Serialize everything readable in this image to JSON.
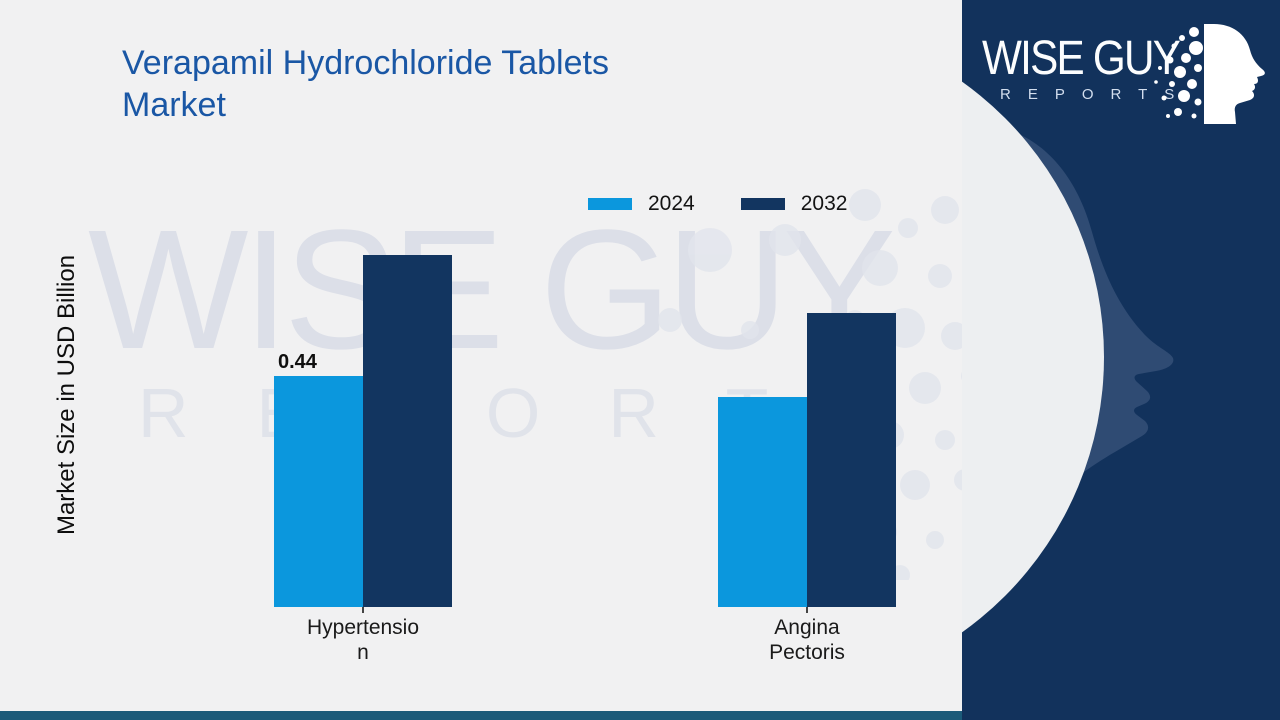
{
  "header": {
    "title_lines": [
      "Verapamil Hydrochloride Tablets",
      "Market"
    ],
    "title_color": "#1a57a5"
  },
  "logo": {
    "brand_line1": "WISE GUY",
    "brand_line2": "REPORTS"
  },
  "watermark": {
    "line1": "WISE GUY",
    "line2": "REPORTS"
  },
  "colors": {
    "background": "#f1f1f2",
    "series_2024": "#0b97dd",
    "series_2032": "#123560",
    "right_panel": "#12325c",
    "bottom_stripe": "#1b5a79",
    "face_silhouette": "#2f4b73"
  },
  "chart_data": {
    "type": "bar",
    "title": "Verapamil Hydrochloride Tablets Market",
    "categories": [
      "Hypertension",
      "Angina Pectoris"
    ],
    "series": [
      {
        "name": "2024",
        "color": "#0b97dd",
        "values": [
          0.44,
          0.4
        ]
      },
      {
        "name": "2032",
        "color": "#123560",
        "values": [
          0.67,
          0.56
        ]
      }
    ],
    "data_labels": [
      {
        "series": "2024",
        "category": "Hypertension",
        "text": "0.44"
      }
    ],
    "category_label_lines": [
      "Hypertensio\nn",
      "Angina\nPectoris"
    ],
    "xlabel": "",
    "ylabel": "Market Size in USD Billion",
    "ylim": [
      0,
      0.72
    ],
    "grid": false,
    "y_axis_ticks_visible": false,
    "legend_position": "top-center"
  }
}
